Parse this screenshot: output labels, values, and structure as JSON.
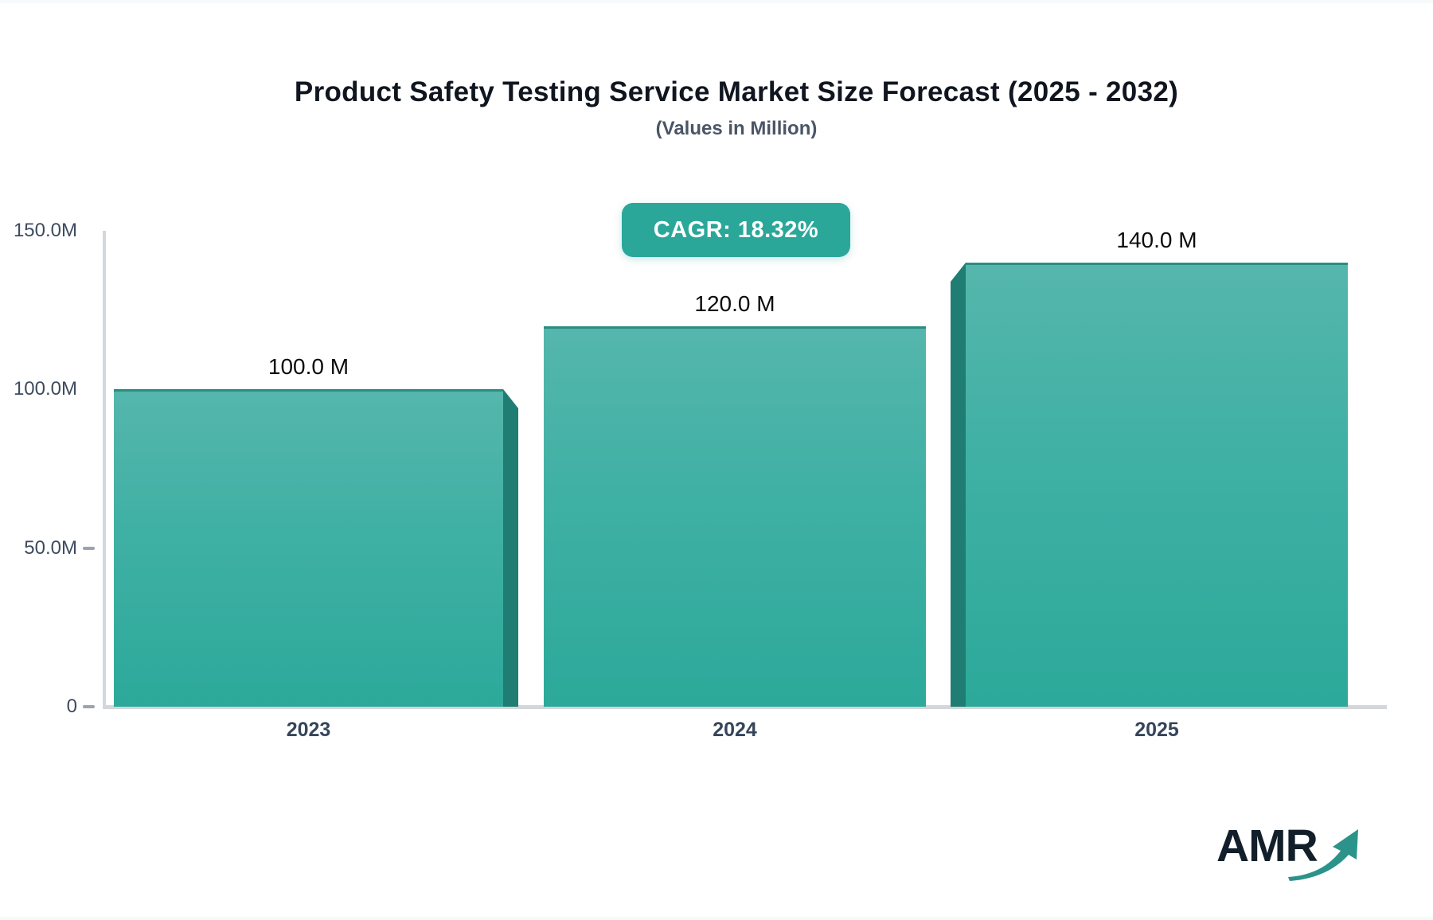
{
  "chart_data": {
    "type": "bar",
    "title": "Product Safety Testing Service Market Size Forecast (2025 - 2032)",
    "subtitle": "(Values in Million)",
    "badge_label": "CAGR: 18.32%",
    "categories": [
      "2023",
      "2024",
      "2025"
    ],
    "values": [
      100,
      120,
      140
    ],
    "value_labels": [
      "100.0 M",
      "120.0 M",
      "140.0 M"
    ],
    "xlabel": "",
    "ylabel": "",
    "ylim": [
      0,
      150
    ],
    "y_ticks": [
      {
        "label": "150.0M",
        "value": 150,
        "dash": false
      },
      {
        "label": "100.0M",
        "value": 100,
        "dash": false
      },
      {
        "label": "50.0M",
        "value": 50,
        "dash": true
      },
      {
        "label": "0",
        "value": 0,
        "dash": true
      }
    ],
    "grid": false,
    "legend": false,
    "bar_3d_sides": [
      "right",
      "none",
      "left"
    ],
    "colors": {
      "bar_gradient_top": "#55b6ac",
      "bar_gradient_bottom": "#2ca99a",
      "bar_top_edge": "#2a8d82",
      "bar_3d_side": "#1f7d73",
      "badge_background": "#2ba79a",
      "badge_text": "#ffffff",
      "axis_line": "#d4d7dc",
      "tick_text": "#3e4b5f",
      "category_text": "#36455a",
      "value_text": "#0b0b0c",
      "title_text": "#10161f",
      "subtitle_text": "#4a5565"
    }
  },
  "footer": {
    "logo_text": "AMR",
    "logo_arrow_color": "#2b938a"
  }
}
